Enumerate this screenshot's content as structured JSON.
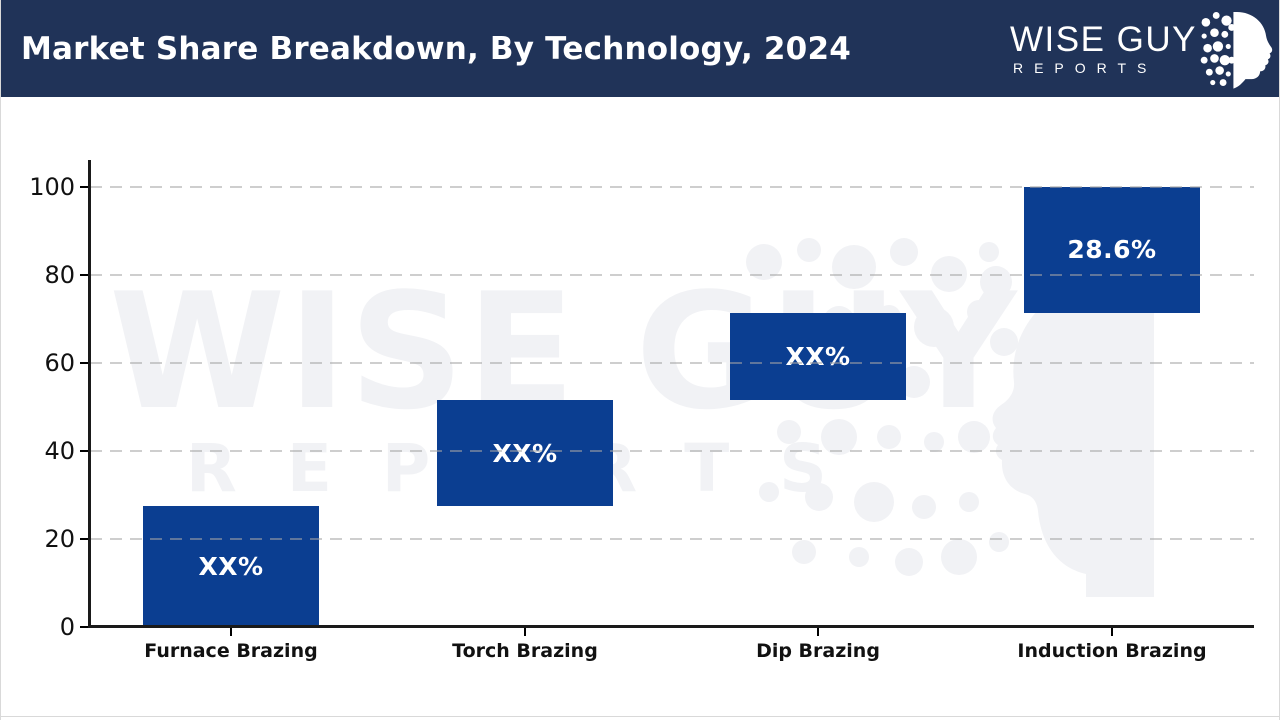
{
  "header": {
    "title": "Market Share Breakdown, By Technology, 2024",
    "logo": {
      "wordmark": "WISE GUY",
      "subtext": "REPORTS"
    }
  },
  "watermark": {
    "wordmark": "WISE GUY",
    "subtext": "REPORTS"
  },
  "colors": {
    "header_bg": "#203358",
    "header_text": "#ffffff",
    "bar_fill": "#0b3e91",
    "bar_label_text": "#ffffff",
    "axis_text": "#111111",
    "gridline": "#c9c9c9",
    "watermark": "#f1f2f5"
  },
  "chart_data": {
    "type": "bar",
    "subtype": "waterfall",
    "title": "Market Share Breakdown, By Technology, 2024",
    "categories": [
      "Furnace Brazing",
      "Torch Brazing",
      "Dip Brazing",
      "Induction Brazing"
    ],
    "segments": [
      {
        "category": "Furnace Brazing",
        "start": 0,
        "end": 27.5,
        "value": 27.5,
        "label": "XX%"
      },
      {
        "category": "Torch Brazing",
        "start": 27.5,
        "end": 51.5,
        "value": 24.0,
        "label": "XX%"
      },
      {
        "category": "Dip Brazing",
        "start": 51.5,
        "end": 71.4,
        "value": 19.9,
        "label": "XX%"
      },
      {
        "category": "Induction Brazing",
        "start": 71.4,
        "end": 100,
        "value": 28.6,
        "label": "28.6%"
      }
    ],
    "xlabel": "",
    "ylabel": "",
    "ylim": [
      0,
      100
    ],
    "y_ticks": [
      0,
      20,
      40,
      60,
      80,
      100
    ],
    "grid": "horizontal-dashed-over-bars",
    "legend": "none"
  }
}
